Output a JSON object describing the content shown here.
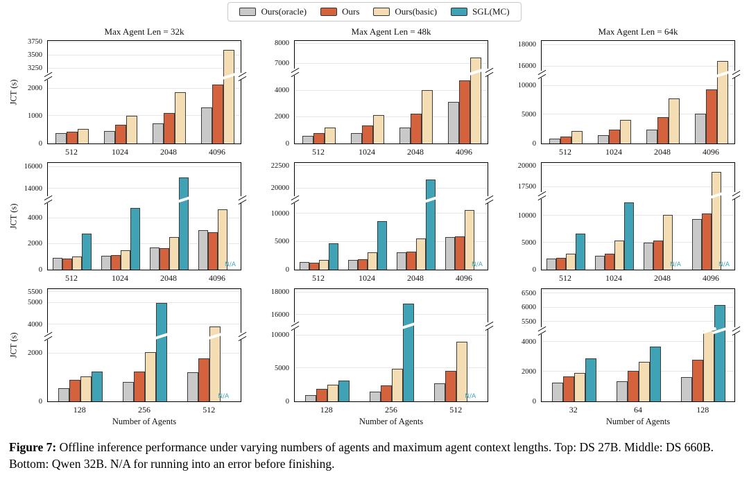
{
  "page": {
    "background": "#ffffff"
  },
  "legend": {
    "items": [
      {
        "label": "Ours(oracle)",
        "color": "#c9c9c9"
      },
      {
        "label": "Ours",
        "color": "#d4623c"
      },
      {
        "label": "Ours(basic)",
        "color": "#f4ddb2"
      },
      {
        "label": "SGL(MC)",
        "color": "#3fa3b5"
      }
    ]
  },
  "caption": {
    "label": "Figure 7:",
    "text": " Offline inference performance under varying numbers of agents and maximum agent context lengths. Top: DS 27B. Middle: DS 660B. Bottom: Qwen 32B. N/A for running into an error before finishing."
  },
  "na_color": "#3fa3b5",
  "chart_data": [
    {
      "type": "bar",
      "title": "Max Agent Len = 32k",
      "ylabel": "JCT (s)",
      "xlabel": "",
      "categories": [
        "512",
        "1024",
        "2048",
        "4096"
      ],
      "axis": {
        "lower_ticks": [
          0,
          1000,
          2000
        ],
        "upper_ticks": [
          3250,
          3500,
          3750
        ],
        "lower_max": 2350,
        "upper_min": 3150,
        "upper_max": 3800,
        "lower_frac": 0.62
      },
      "series": [
        {
          "name": "Ours(oracle)",
          "values": [
            380,
            450,
            730,
            1320
          ]
        },
        {
          "name": "Ours",
          "values": [
            420,
            680,
            1120,
            2150
          ]
        },
        {
          "name": "Ours(basic)",
          "values": [
            520,
            1000,
            1880,
            3600
          ]
        }
      ]
    },
    {
      "type": "bar",
      "title": "Max Agent Len = 48k",
      "ylabel": "",
      "xlabel": "",
      "categories": [
        "512",
        "1024",
        "2048",
        "4096"
      ],
      "axis": {
        "lower_ticks": [
          0,
          2000,
          4000
        ],
        "upper_ticks": [
          7000,
          8000
        ],
        "lower_max": 5200,
        "upper_min": 6700,
        "upper_max": 8200,
        "lower_frac": 0.66
      },
      "series": [
        {
          "name": "Ours(oracle)",
          "values": [
            600,
            800,
            1200,
            3150
          ]
        },
        {
          "name": "Ours",
          "values": [
            800,
            1350,
            2250,
            4800
          ]
        },
        {
          "name": "Ours(basic)",
          "values": [
            1200,
            2150,
            4050,
            7300
          ]
        }
      ]
    },
    {
      "type": "bar",
      "title": "Max Agent Len = 64k",
      "ylabel": "",
      "xlabel": "",
      "categories": [
        "512",
        "1024",
        "2048",
        "4096"
      ],
      "axis": {
        "lower_ticks": [
          0,
          5000,
          10000
        ],
        "upper_ticks": [
          16000,
          18000
        ],
        "lower_max": 11500,
        "upper_min": 15500,
        "upper_max": 18500,
        "lower_frac": 0.64
      },
      "series": [
        {
          "name": "Ours(oracle)",
          "values": [
            900,
            1400,
            2400,
            5200
          ]
        },
        {
          "name": "Ours",
          "values": [
            1200,
            2400,
            4500,
            9400
          ]
        },
        {
          "name": "Ours(basic)",
          "values": [
            2200,
            4100,
            7800,
            16500
          ]
        }
      ]
    },
    {
      "type": "bar",
      "title": "",
      "ylabel": "JCT (s)",
      "xlabel": "",
      "categories": [
        "512",
        "1024",
        "2048",
        "4096"
      ],
      "axis": {
        "lower_ticks": [
          0,
          2000,
          4000
        ],
        "upper_ticks": [
          14000,
          16000
        ],
        "lower_max": 5200,
        "upper_min": 13200,
        "upper_max": 16500,
        "lower_frac": 0.62
      },
      "series": [
        {
          "name": "Ours(oracle)",
          "values": [
            900,
            1100,
            1700,
            3050
          ]
        },
        {
          "name": "Ours",
          "values": [
            850,
            1150,
            1650,
            2900
          ]
        },
        {
          "name": "Ours(basic)",
          "values": [
            1000,
            1500,
            2550,
            4700
          ]
        },
        {
          "name": "SGL(MC)",
          "values": [
            2800,
            4800,
            15000,
            "N/A"
          ]
        }
      ]
    },
    {
      "type": "bar",
      "title": "",
      "ylabel": "",
      "xlabel": "",
      "categories": [
        "512",
        "1024",
        "2048",
        "4096"
      ],
      "axis": {
        "lower_ticks": [
          0,
          5000,
          10000
        ],
        "upper_ticks": [
          20000,
          22500
        ],
        "lower_max": 12000,
        "upper_min": 19000,
        "upper_max": 23000,
        "lower_frac": 0.62
      },
      "series": [
        {
          "name": "Ours(oracle)",
          "values": [
            1400,
            1800,
            3100,
            5800
          ]
        },
        {
          "name": "Ours",
          "values": [
            1300,
            1900,
            3200,
            5900
          ]
        },
        {
          "name": "Ours(basic)",
          "values": [
            1800,
            3100,
            5600,
            10700
          ]
        },
        {
          "name": "SGL(MC)",
          "values": [
            4700,
            8700,
            21000,
            "N/A"
          ]
        }
      ]
    },
    {
      "type": "bar",
      "title": "",
      "ylabel": "",
      "xlabel": "",
      "categories": [
        "512",
        "1024",
        "2048",
        "4096"
      ],
      "axis": {
        "lower_ticks": [
          0,
          5000,
          10000
        ],
        "upper_ticks": [
          17500,
          20000
        ],
        "lower_max": 13200,
        "upper_min": 16800,
        "upper_max": 20500,
        "lower_frac": 0.66
      },
      "series": [
        {
          "name": "Ours(oracle)",
          "values": [
            2000,
            2600,
            5000,
            9400
          ]
        },
        {
          "name": "Ours",
          "values": [
            2200,
            3000,
            5400,
            10400
          ]
        },
        {
          "name": "Ours(basic)",
          "values": [
            3000,
            5400,
            10100,
            19300
          ]
        },
        {
          "name": "SGL(MC)",
          "values": [
            6700,
            12500,
            "N/A",
            "N/A"
          ]
        }
      ]
    },
    {
      "type": "bar",
      "title": "",
      "ylabel": "JCT (s)",
      "xlabel": "Number of Agents",
      "categories": [
        "128",
        "256",
        "512"
      ],
      "axis": {
        "lower_ticks": [
          0,
          2000
        ],
        "upper_ticks": [
          4000,
          5000,
          5500
        ],
        "lower_max": 2600,
        "upper_min": 3600,
        "upper_max": 5700,
        "lower_frac": 0.55
      },
      "series": [
        {
          "name": "Ours(oracle)",
          "values": [
            550,
            800,
            1200
          ]
        },
        {
          "name": "Ours",
          "values": [
            900,
            1250,
            1800
          ]
        },
        {
          "name": "Ours(basic)",
          "values": [
            1050,
            2050,
            3900
          ]
        },
        {
          "name": "SGL(MC)",
          "values": [
            1250,
            5000,
            "N/A"
          ]
        }
      ]
    },
    {
      "type": "bar",
      "title": "",
      "ylabel": "",
      "xlabel": "Number of Agents",
      "categories": [
        "128",
        "256",
        "512"
      ],
      "axis": {
        "lower_ticks": [
          0,
          5000,
          10000
        ],
        "upper_ticks": [
          16000,
          18000
        ],
        "lower_max": 11000,
        "upper_min": 15300,
        "upper_max": 18400,
        "lower_frac": 0.64
      },
      "series": [
        {
          "name": "Ours(oracle)",
          "values": [
            1000,
            1500,
            2700
          ]
        },
        {
          "name": "Ours",
          "values": [
            1900,
            2400,
            4600
          ]
        },
        {
          "name": "Ours(basic)",
          "values": [
            2500,
            4900,
            9000
          ]
        },
        {
          "name": "SGL(MC)",
          "values": [
            3100,
            17000,
            "N/A"
          ]
        }
      ]
    },
    {
      "type": "bar",
      "title": "",
      "ylabel": "",
      "xlabel": "Number of Agents",
      "categories": [
        "32",
        "64",
        "128"
      ],
      "axis": {
        "lower_ticks": [
          0,
          2000,
          4000
        ],
        "upper_ticks": [
          5500,
          6000,
          6500
        ],
        "lower_max": 4600,
        "upper_min": 5300,
        "upper_max": 6700,
        "lower_frac": 0.6
      },
      "series": [
        {
          "name": "Ours(oracle)",
          "values": [
            1250,
            1350,
            1650
          ]
        },
        {
          "name": "Ours",
          "values": [
            1700,
            2050,
            2800
          ]
        },
        {
          "name": "Ours(basic)",
          "values": [
            1900,
            2650,
            5000
          ]
        },
        {
          "name": "SGL(MC)",
          "values": [
            2900,
            3700,
            6100
          ]
        }
      ]
    }
  ]
}
